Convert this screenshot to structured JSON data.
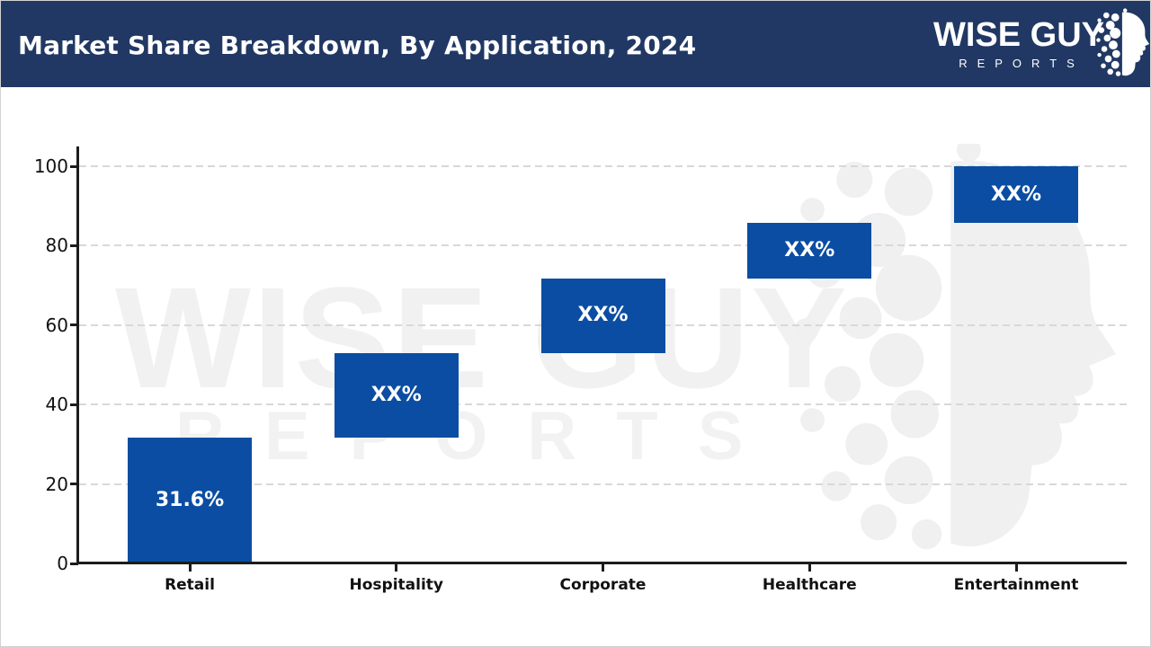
{
  "header": {
    "title": "Market Share Breakdown, By Application, 2024",
    "logo": {
      "wordmark": "WISE GUY",
      "subtext": "REPORTS"
    },
    "background_color": "#213864",
    "text_color": "#ffffff"
  },
  "watermark": {
    "line1": "WISE GUY",
    "line2": "REPORTS"
  },
  "chart_data": {
    "type": "bar",
    "subtype": "waterfall",
    "title": "Market Share Breakdown, By Application, 2024",
    "categories": [
      "Retail",
      "Hospitality",
      "Corporate",
      "Healthcare",
      "Entertainment"
    ],
    "series": [
      {
        "name": "Market Share (%)",
        "segments": [
          {
            "category": "Retail",
            "start": 0,
            "end": 31.6,
            "value": 31.6,
            "label": "31.6%"
          },
          {
            "category": "Hospitality",
            "start": 31.6,
            "end": 53.0,
            "value": 21.4,
            "label": "XX%"
          },
          {
            "category": "Corporate",
            "start": 53.0,
            "end": 71.7,
            "value": 18.7,
            "label": "XX%"
          },
          {
            "category": "Healthcare",
            "start": 71.7,
            "end": 85.7,
            "value": 14.0,
            "label": "XX%"
          },
          {
            "category": "Entertainment",
            "start": 85.7,
            "end": 100,
            "value": 14.3,
            "label": "XX%"
          }
        ]
      }
    ],
    "xlabel": "",
    "ylabel": "",
    "ylim": [
      0,
      100
    ],
    "yticks": [
      0,
      20,
      40,
      60,
      80,
      100
    ],
    "grid": "horizontal-dashed",
    "legend": "none",
    "bar_color": "#0b4da2",
    "bar_label_color": "#ffffff",
    "axis_color": "#1c1c1c",
    "gridline_color": "#d8d8d8"
  }
}
